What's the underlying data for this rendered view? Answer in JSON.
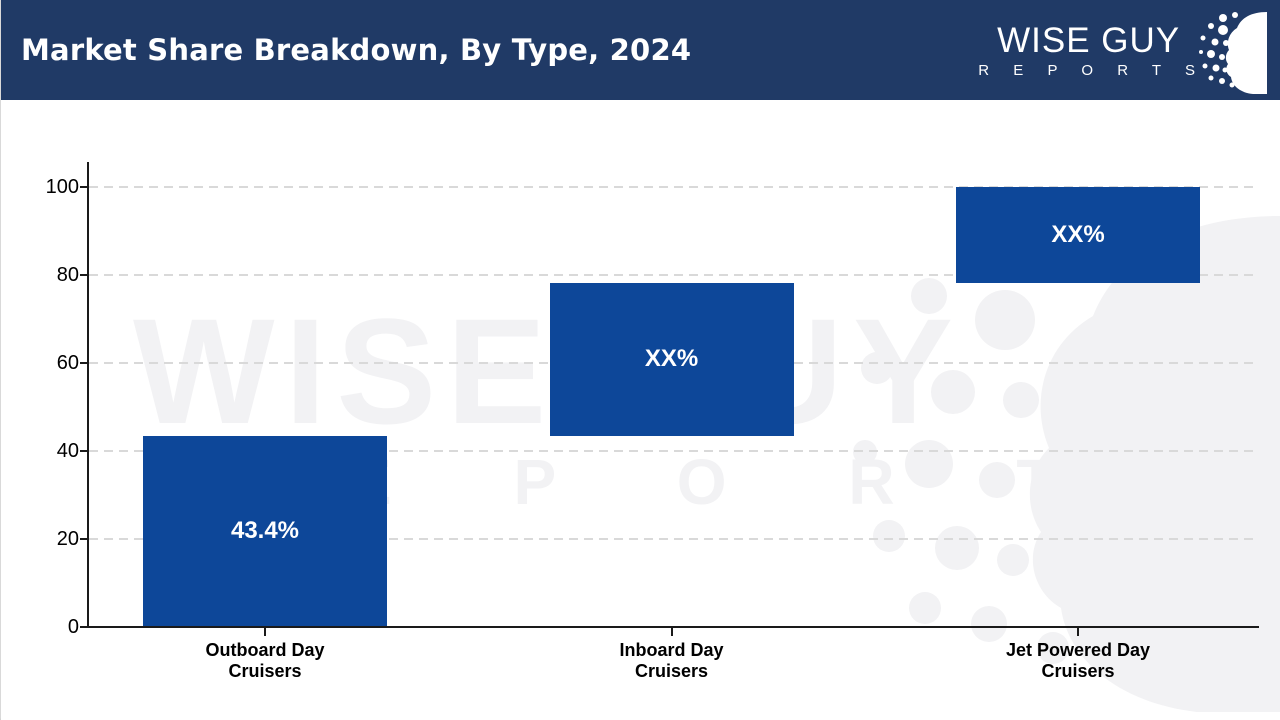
{
  "page": {
    "background": "#ffffff",
    "border_color": "#d9d9d9"
  },
  "header": {
    "bg_color": "#203a66",
    "title": "Market Share Breakdown, By Type, 2024",
    "logo": {
      "name": "WISE GUY",
      "sub": "R E P O R T S"
    }
  },
  "watermark": {
    "text_main": "WISE GUY",
    "text_sub": "R E P O R T S",
    "color": "#f2f2f4"
  },
  "chart_data": {
    "type": "bar",
    "subtype": "waterfall-stacked-percentage",
    "title": "Market Share Breakdown, By Type, 2024",
    "categories": [
      "Outboard Day Cruisers",
      "Inboard Day Cruisers",
      "Jet Powered Day Cruisers"
    ],
    "categories_lines": [
      [
        "Outboard Day",
        "Cruisers"
      ],
      [
        "Inboard Day",
        "Cruisers"
      ],
      [
        "Jet Powered Day",
        "Cruisers"
      ]
    ],
    "segments": [
      {
        "category": "Outboard Day Cruisers",
        "start": 0,
        "end": 43.4,
        "label": "43.4%"
      },
      {
        "category": "Inboard Day Cruisers",
        "start": 43.4,
        "end": 78.1,
        "label": "XX%"
      },
      {
        "category": "Jet Powered Day Cruisers",
        "start": 78.1,
        "end": 99.8,
        "label": "XX%"
      }
    ],
    "y_ticks": [
      0,
      20,
      40,
      60,
      80,
      100
    ],
    "ylim": [
      0,
      105
    ],
    "xlabel": "",
    "ylabel": "",
    "bar_color": "#0d4799",
    "bar_label_color": "#ffffff",
    "axis_color": "#1a1a1a",
    "grid": "horizontal dashed",
    "grid_color": "#d9d9d9",
    "legend": "none"
  }
}
